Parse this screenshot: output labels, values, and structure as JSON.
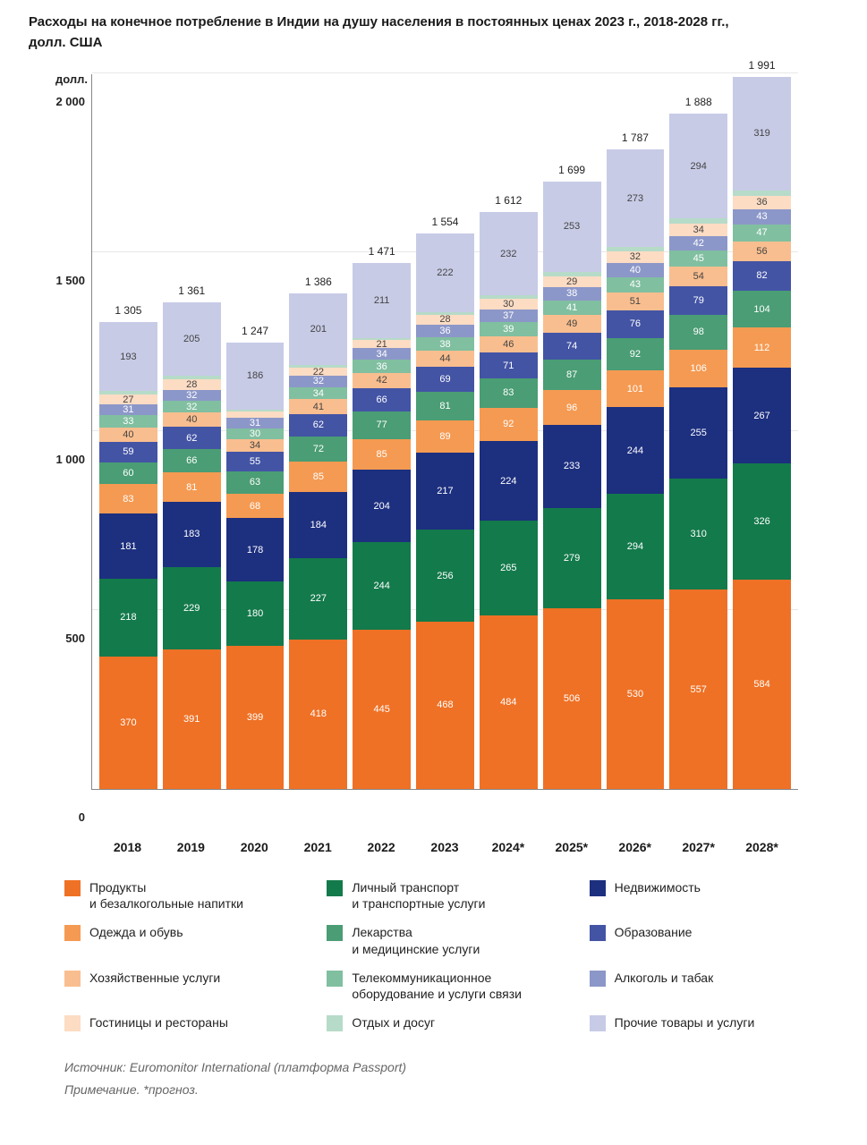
{
  "title": "Расходы на конечное потребление в Индии на душу населения в постоянных ценах 2023 г., 2018-2028 гг., долл. США",
  "chart": {
    "type": "stacked-bar",
    "y_axis_label": "долл.",
    "ylim": [
      0,
      2000
    ],
    "y_ticks": [
      0,
      500,
      1000,
      1500,
      2000
    ],
    "y_tick_labels": [
      "0",
      "500",
      "1 000",
      "1 500",
      "2 000"
    ],
    "categories": [
      "2018",
      "2019",
      "2020",
      "2021",
      "2022",
      "2023",
      "2024*",
      "2025*",
      "2026*",
      "2027*",
      "2028*"
    ],
    "totals": [
      "1 305",
      "1 361",
      "1 247",
      "1 386",
      "1 471",
      "1 554",
      "1 612",
      "1 699",
      "1 787",
      "1 888",
      "1 991"
    ],
    "series": [
      {
        "key": "food",
        "label": "Продукты\nи безалкогольные напитки",
        "color": "#ef7125",
        "dark_text": false
      },
      {
        "key": "transport",
        "label": "Личный транспорт\nи транспортные услуги",
        "color": "#137a4b",
        "dark_text": false
      },
      {
        "key": "housing",
        "label": "Недвижимость",
        "color": "#1d2f7f",
        "dark_text": false
      },
      {
        "key": "clothing",
        "label": "Одежда и обувь",
        "color": "#f59a52",
        "dark_text": false
      },
      {
        "key": "health",
        "label": "Лекарства\nи медицинские услуги",
        "color": "#4a9d74",
        "dark_text": false
      },
      {
        "key": "education",
        "label": "Образование",
        "color": "#4354a5",
        "dark_text": false
      },
      {
        "key": "household",
        "label": "Хозяйственные услуги",
        "color": "#f9be8f",
        "dark_text": true
      },
      {
        "key": "telecom",
        "label": "Телекоммуникационное\nоборудование и услуги связи",
        "color": "#80bfa0",
        "dark_text": false
      },
      {
        "key": "alcohol",
        "label": "Алкоголь и табак",
        "color": "#8c97c9",
        "dark_text": false
      },
      {
        "key": "hotels",
        "label": "Гостиницы и рестораны",
        "color": "#fcdcc3",
        "dark_text": true
      },
      {
        "key": "leisure",
        "label": "Отдых и досуг",
        "color": "#b6dbc8",
        "dark_text": true
      },
      {
        "key": "other",
        "label": "Прочие товары и услуги",
        "color": "#c7cbe6",
        "dark_text": true
      }
    ],
    "data": {
      "food": [
        370,
        391,
        399,
        418,
        445,
        468,
        484,
        506,
        530,
        557,
        584
      ],
      "transport": [
        218,
        229,
        180,
        227,
        244,
        256,
        265,
        279,
        294,
        310,
        326
      ],
      "housing": [
        181,
        183,
        178,
        184,
        204,
        217,
        224,
        233,
        244,
        255,
        267
      ],
      "clothing": [
        83,
        81,
        68,
        85,
        85,
        89,
        92,
        96,
        101,
        106,
        112
      ],
      "health": [
        60,
        66,
        63,
        72,
        77,
        81,
        83,
        87,
        92,
        98,
        104
      ],
      "education": [
        59,
        62,
        55,
        62,
        66,
        69,
        71,
        74,
        76,
        79,
        82
      ],
      "household": [
        40,
        40,
        34,
        41,
        42,
        44,
        46,
        49,
        51,
        54,
        56
      ],
      "telecom": [
        33,
        32,
        30,
        34,
        36,
        38,
        39,
        41,
        43,
        45,
        47
      ],
      "alcohol": [
        31,
        32,
        31,
        32,
        34,
        36,
        37,
        38,
        40,
        42,
        43
      ],
      "hotels": [
        27,
        28,
        17,
        22,
        21,
        28,
        30,
        29,
        32,
        34,
        36
      ],
      "leisure": [
        10,
        12,
        6,
        8,
        6,
        6,
        9,
        14,
        11,
        14,
        15
      ],
      "other": [
        193,
        205,
        186,
        201,
        211,
        222,
        232,
        253,
        273,
        294,
        319
      ]
    },
    "label_min_threshold": 20,
    "background_color": "#ffffff",
    "grid_color": "#e8e8e8",
    "label_fontsize": 11,
    "axis_fontsize": 13
  },
  "footer": {
    "source": "Источник: Euromonitor International (платформа Passport)",
    "note": "Примечание. *прогноз."
  }
}
